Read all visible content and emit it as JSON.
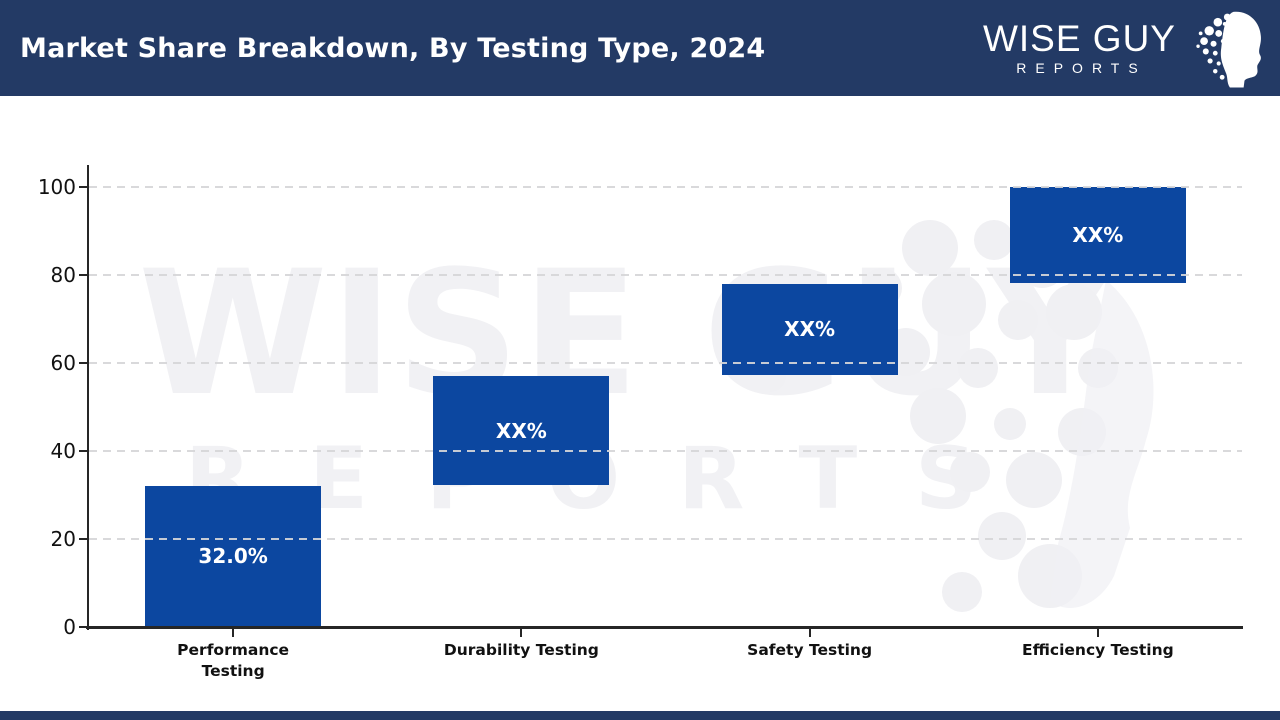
{
  "header": {
    "title": "Market Share Breakdown, By Testing Type, 2024",
    "brand_line1": "WISE GUY",
    "brand_line2": "REPORTS"
  },
  "watermark": {
    "line1": "WISE GUY",
    "line2": "REPORTS"
  },
  "chart_data": {
    "type": "bar",
    "subtype": "waterfall",
    "title": "Market Share Breakdown, By Testing Type, 2024",
    "xlabel": "",
    "ylabel": "",
    "ylim": [
      0,
      105
    ],
    "y_ticks": [
      0,
      20,
      40,
      60,
      80,
      100
    ],
    "grid": "horizontal-dashed",
    "legend": "none",
    "bar_color": "#0c47a0",
    "categories": [
      [
        "Performance",
        "Testing"
      ],
      [
        "Durability Testing"
      ],
      [
        "Safety Testing"
      ],
      [
        "Efficiency Testing"
      ]
    ],
    "segments": [
      {
        "category": "Performance Testing",
        "start": 0,
        "end": 32,
        "value": 32,
        "label": "32.0%"
      },
      {
        "category": "Durability Testing",
        "start": 32,
        "end": 57,
        "value": 25,
        "label": "XX%"
      },
      {
        "category": "Safety Testing",
        "start": 57,
        "end": 78,
        "value": 21,
        "label": "XX%"
      },
      {
        "category": "Efficiency Testing",
        "start": 78,
        "end": 100,
        "value": 22,
        "label": "XX%"
      }
    ]
  },
  "colors": {
    "header_bg": "#233a65",
    "footer_bg": "#233a65",
    "bar": "#0c47a0",
    "axis": "#262626",
    "grid": "#d6d6d8",
    "bar_label": "#ffffff"
  }
}
